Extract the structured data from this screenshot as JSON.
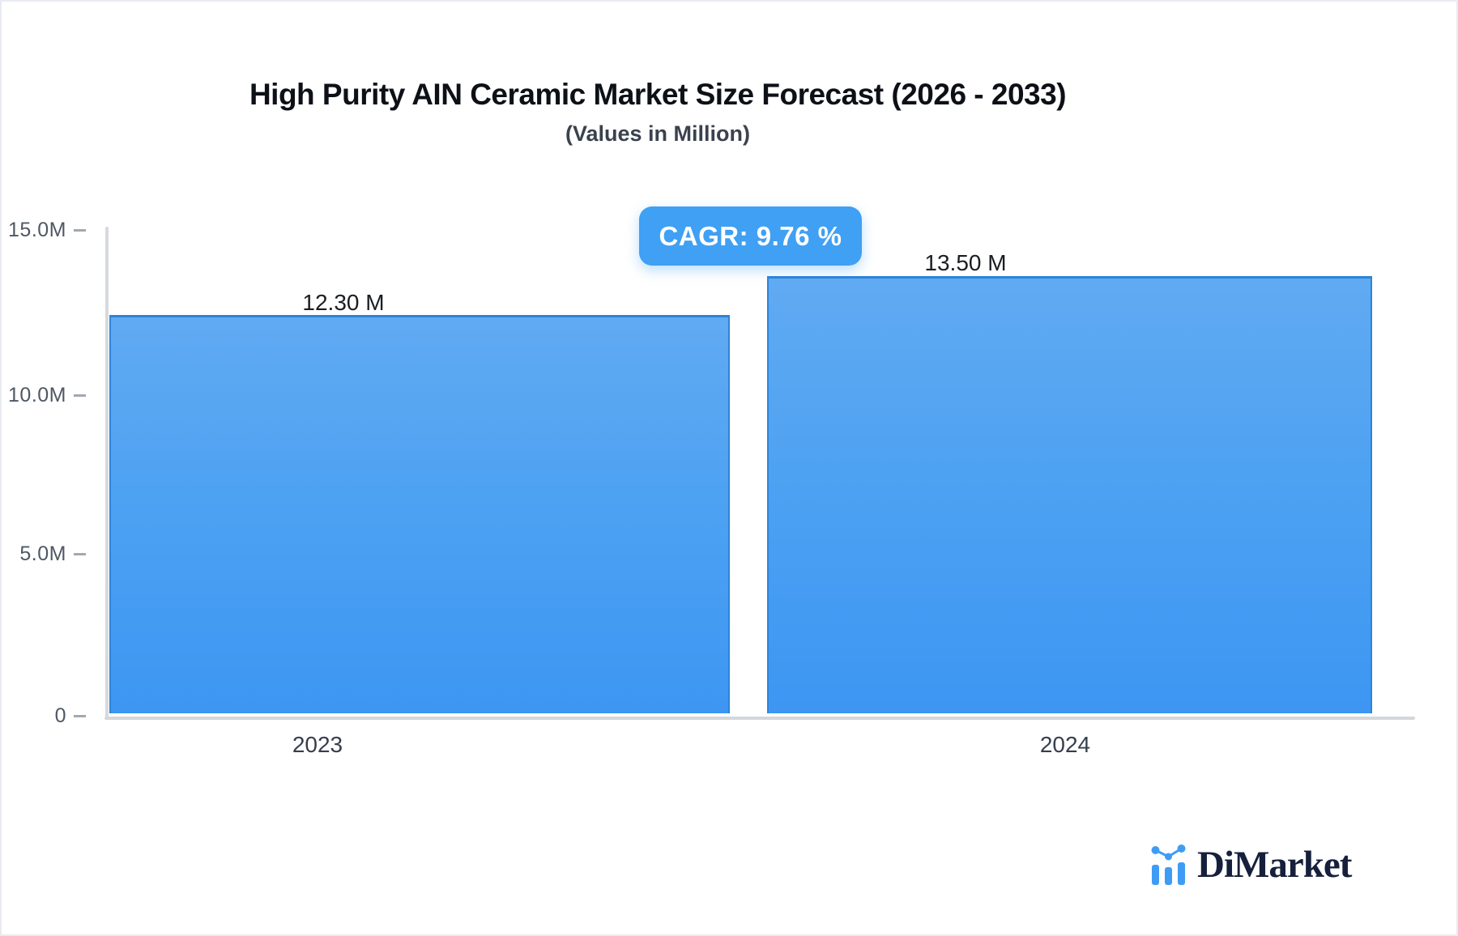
{
  "title": "High Purity AIN Ceramic Market Size Forecast (2026 - 2033)",
  "subtitle": "(Values in Million)",
  "cagr_label": "CAGR: 9.76 %",
  "brand": {
    "name": "DiMarket"
  },
  "colors": {
    "accent_blue": "#3FA0F4",
    "bar_gradient_top": "#60AAF2",
    "bar_gradient_bottom": "#3D96F2",
    "bar_border": "#2D84D8",
    "axis_line": "#D6D9DE",
    "axis_tick_label": "#4E5865",
    "value_label_text": "#1A1D21",
    "logo_navy": "#16203C"
  },
  "chart_data": {
    "type": "bar",
    "categories": [
      "2023",
      "2024"
    ],
    "values": [
      12.3,
      13.5
    ],
    "value_labels": [
      "12.30 M",
      "13.50 M"
    ],
    "title": "High Purity AIN Ceramic Market Size Forecast (2026 - 2033)",
    "subtitle": "(Values in Million)",
    "xlabel": "",
    "ylabel": "",
    "ylim": [
      0,
      15
    ],
    "yticks": [
      "15.0M",
      "10.0M",
      "5.0M",
      "0"
    ],
    "grid": false,
    "legend": false,
    "cagr_percent": 9.76,
    "bar_color": "#4AA0F2"
  }
}
